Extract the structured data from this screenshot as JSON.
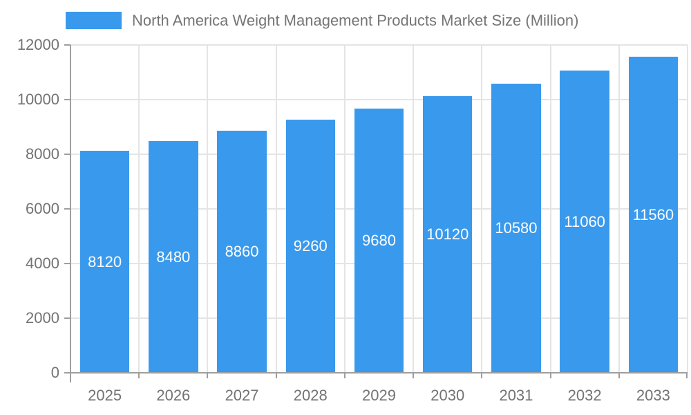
{
  "chart_data": {
    "type": "bar",
    "title": "North America Weight Management Products Market Size (Million)",
    "categories": [
      "2025",
      "2026",
      "2027",
      "2028",
      "2029",
      "2030",
      "2031",
      "2032",
      "2033"
    ],
    "values": [
      8120,
      8480,
      8860,
      9260,
      9680,
      10120,
      10580,
      11060,
      11560
    ],
    "series_name": "North America Weight Management Products Market Size (Million)",
    "xlabel": "",
    "ylabel": "",
    "ylim": [
      0,
      12000
    ],
    "ytick_step": 2000,
    "ytick_labels": [
      "0",
      "2000",
      "4000",
      "6000",
      "8000",
      "10000",
      "12000"
    ],
    "grid": true,
    "legend_position": "top",
    "value_labels_shown": true,
    "colors": {
      "bar": "#3999EC",
      "grid": "#e4e4e4",
      "axis": "#9e9e9e",
      "tick_label": "#737373",
      "legend_text": "#757575",
      "value_label": "#ffffff",
      "background": "#ffffff"
    }
  }
}
